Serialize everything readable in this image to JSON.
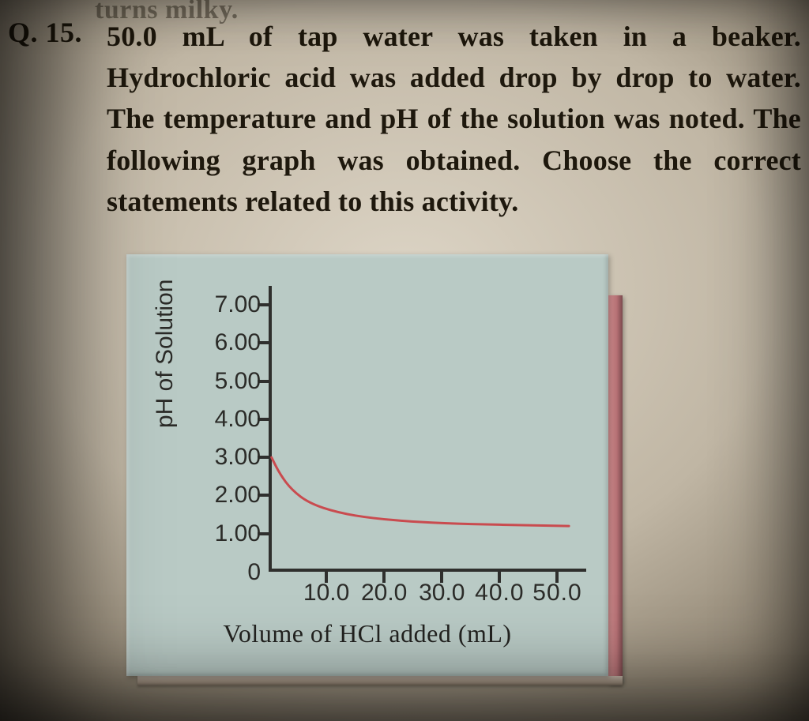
{
  "prev_line_fragment": "turns milky.",
  "question": {
    "label": "Q. 15.",
    "text": "50.0 mL of tap water was taken in a beaker. Hydrochloric acid was added drop by drop to water. The temperature and pH of the solution was noted. The following graph was obtained. Choose the correct statements related to this activity."
  },
  "chart": {
    "type": "line",
    "background_color": "#b9cac5",
    "axis_color": "#2f2f2d",
    "curve_color": "#c94b4f",
    "curve_width": 3,
    "tick_font_family": "Arial, Helvetica, sans-serif",
    "tick_fontsize": 30,
    "xlabel": "Volume of HCl added (mL)",
    "ylabel": "pH of Solution",
    "xlabel_fontsize": 32,
    "ylabel_fontsize": 30,
    "xlim": [
      0,
      55
    ],
    "ylim": [
      0,
      7.5
    ],
    "y_ticks": [
      {
        "value": 7.0,
        "label": "7.00"
      },
      {
        "value": 6.0,
        "label": "6.00"
      },
      {
        "value": 5.0,
        "label": "5.00"
      },
      {
        "value": 4.0,
        "label": "4.00"
      },
      {
        "value": 3.0,
        "label": "3.00"
      },
      {
        "value": 2.0,
        "label": "2.00"
      },
      {
        "value": 1.0,
        "label": "1.00"
      }
    ],
    "zero_label": "0",
    "x_ticks": [
      {
        "value": 10.0,
        "label": "10.0"
      },
      {
        "value": 20.0,
        "label": "20.0"
      },
      {
        "value": 30.0,
        "label": "30.0"
      },
      {
        "value": 40.0,
        "label": "40.0"
      },
      {
        "value": 50.0,
        "label": "50.0"
      }
    ],
    "data_points": [
      {
        "x": 0.5,
        "y": 3.0
      },
      {
        "x": 2.0,
        "y": 2.55
      },
      {
        "x": 4.0,
        "y": 2.15
      },
      {
        "x": 7.0,
        "y": 1.8
      },
      {
        "x": 12.0,
        "y": 1.55
      },
      {
        "x": 18.0,
        "y": 1.4
      },
      {
        "x": 26.0,
        "y": 1.3
      },
      {
        "x": 35.0,
        "y": 1.25
      },
      {
        "x": 45.0,
        "y": 1.22
      },
      {
        "x": 52.0,
        "y": 1.2
      }
    ]
  }
}
